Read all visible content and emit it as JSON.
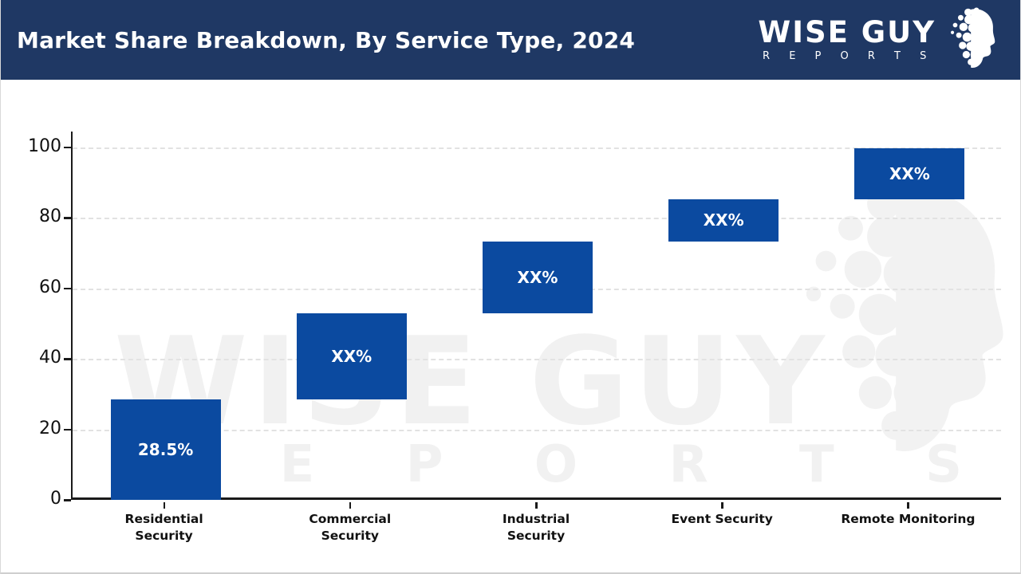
{
  "header": {
    "title": "Market Share Breakdown, By Service Type, 2024",
    "logo": {
      "line1": "WISE GUY",
      "line2": "R E P O R T S",
      "face_icon": "dotted-face-profile-icon"
    }
  },
  "watermark": {
    "line1": "WISE GUY",
    "line2": "R E P O R T S"
  },
  "colors": {
    "header_bg": "#1f3864",
    "bar_fill": "#0b4aa0",
    "bar_label": "#ffffff",
    "axis": "#1a1a1a",
    "gridline": "#e2e2e2",
    "watermark": "#f1f1f1",
    "page_border": "#d9d9d9"
  },
  "chart_data": {
    "type": "bar",
    "subtype": "waterfall-floating-bars",
    "title": "Market Share Breakdown, By Service Type, 2024",
    "xlabel": "",
    "ylabel": "",
    "ylim": [
      0,
      104.5
    ],
    "grid": true,
    "legend": "none",
    "y_ticks": [
      0,
      20,
      40,
      60,
      80,
      100
    ],
    "categories": [
      "Residential Security",
      "Commercial Security",
      "Industrial Security",
      "Event Security",
      "Remote Monitoring"
    ],
    "category_lines": [
      [
        "Residential",
        "Security"
      ],
      [
        "Commercial",
        "Security"
      ],
      [
        "Industrial",
        "Security"
      ],
      [
        "Event Security"
      ],
      [
        "Remote Monitoring"
      ]
    ],
    "segments": [
      {
        "category": "Residential Security",
        "start": 0,
        "end": 28.5,
        "label": "28.5%"
      },
      {
        "category": "Commercial Security",
        "start": 28.5,
        "end": 53.0,
        "label": "XX%"
      },
      {
        "category": "Industrial Security",
        "start": 53.0,
        "end": 73.3,
        "label": "XX%"
      },
      {
        "category": "Event Security",
        "start": 73.3,
        "end": 85.3,
        "label": "XX%"
      },
      {
        "category": "Remote Monitoring",
        "start": 85.3,
        "end": 99.8,
        "label": "XX%"
      }
    ]
  }
}
